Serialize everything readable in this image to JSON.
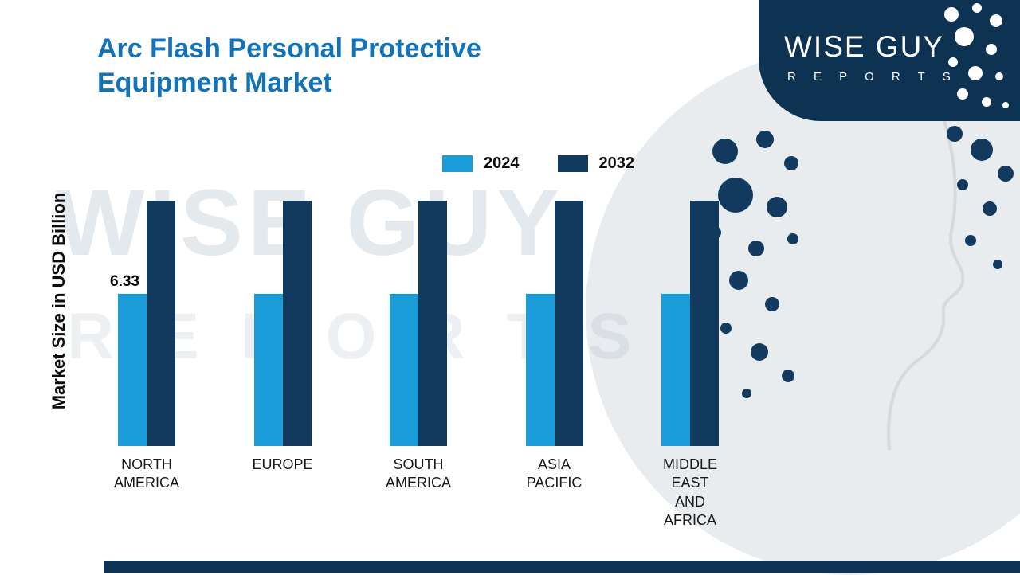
{
  "page": {
    "title_line1": "Arc Flash Personal Protective",
    "title_line2": "Equipment Market"
  },
  "watermark": {
    "line1": "WISE GUY",
    "line2": "REPORTS"
  },
  "logo": {
    "brand": "WISE GUY",
    "sub": "R E P O R T S"
  },
  "chart_data": {
    "type": "bar",
    "title": "Arc Flash Personal Protective Equipment Market",
    "xlabel": "",
    "ylabel": "Market Size in USD Billion",
    "categories": [
      "NORTH AMERICA",
      "EUROPE",
      "SOUTH AMERICA",
      "ASIA PACIFIC",
      "MIDDLE EAST AND AFRICA"
    ],
    "category_lines": [
      [
        "NORTH",
        "AMERICA"
      ],
      [
        "EUROPE"
      ],
      [
        "SOUTH",
        "AMERICA"
      ],
      [
        "ASIA",
        "PACIFIC"
      ],
      [
        "MIDDLE",
        "EAST",
        "AND",
        "AFRICA"
      ]
    ],
    "series": [
      {
        "name": "2024",
        "color": "#1a9cd8",
        "values": [
          6.33,
          6.33,
          6.33,
          6.33,
          6.33
        ]
      },
      {
        "name": "2032",
        "color": "#12395e",
        "values": [
          10.2,
          10.2,
          10.2,
          10.2,
          10.2
        ]
      }
    ],
    "data_labels": [
      "6.33",
      "",
      "",
      "",
      ""
    ],
    "ylim": [
      0,
      10.2
    ],
    "grid": false,
    "legend_position": "top"
  }
}
